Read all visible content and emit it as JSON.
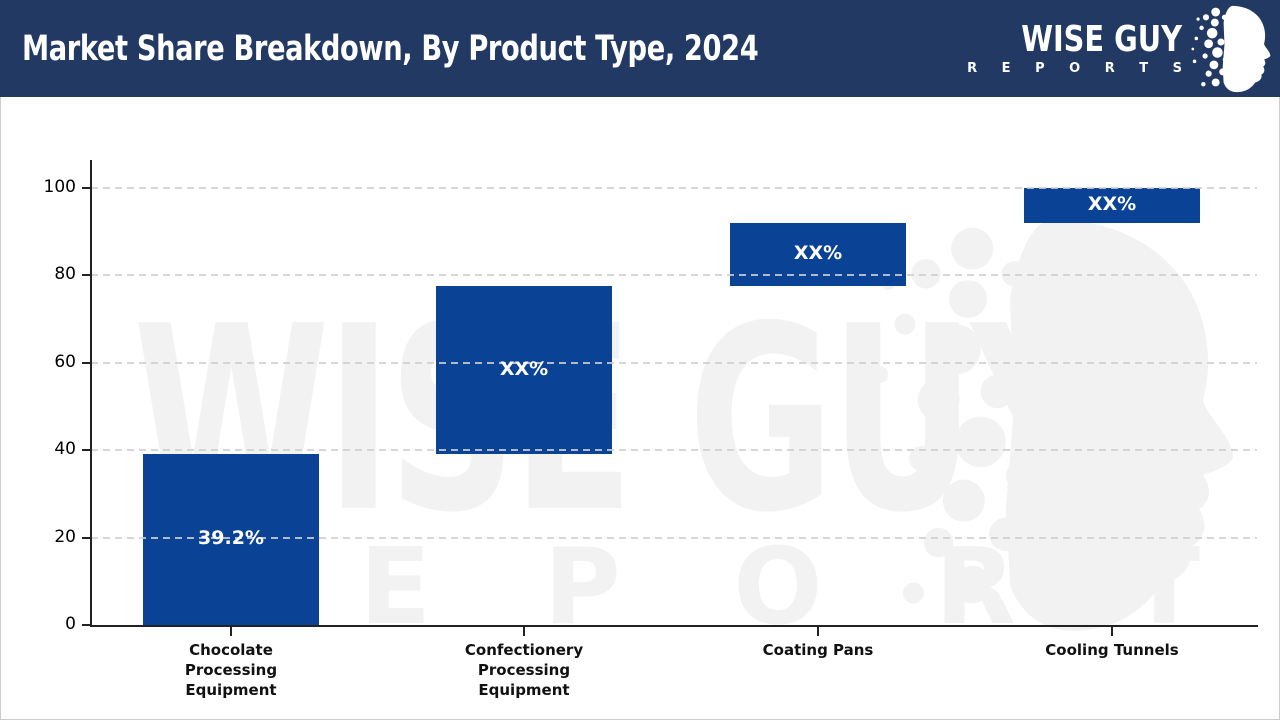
{
  "header": {
    "title": "Market Share Breakdown, By Product Type, 2024",
    "logo": {
      "line1": "WISE GUY",
      "line2": "R E P O R T S"
    }
  },
  "watermark": {
    "line1": "WISE GUY",
    "line2": "R E P O R T S"
  },
  "chart_data": {
    "type": "bar",
    "subtype": "waterfall",
    "title": "Market Share Breakdown, By Product Type, 2024",
    "categories": [
      "Chocolate Processing Equipment",
      "Confectionery Processing Equipment",
      "Coating Pans",
      "Cooling Tunnels"
    ],
    "category_label_lines": [
      [
        "Chocolate",
        "Processing",
        "Equipment"
      ],
      [
        "Confectionery",
        "Processing",
        "Equipment"
      ],
      [
        "Coating Pans"
      ],
      [
        "Cooling Tunnels"
      ]
    ],
    "segments": [
      {
        "category": "Chocolate Processing Equipment",
        "start": 0,
        "end": 39.2,
        "label": "39.2%"
      },
      {
        "category": "Confectionery Processing Equipment",
        "start": 39.2,
        "end": 77.5,
        "label": "XX%"
      },
      {
        "category": "Coating Pans",
        "start": 77.5,
        "end": 92.0,
        "label": "XX%"
      },
      {
        "category": "Cooling Tunnels",
        "start": 92.0,
        "end": 100.0,
        "label": "XX%"
      }
    ],
    "masked_value_label": "XX%",
    "xlabel": "",
    "ylabel": "",
    "ylim": [
      0,
      106
    ],
    "yticks": [
      0,
      20,
      40,
      60,
      80,
      100
    ],
    "grid": {
      "axis": "y",
      "style": "dashed",
      "drawn_above_bars": true
    },
    "legend": "none",
    "colors": {
      "bar": "#0a4296",
      "bar_label": "#ffffff",
      "header_background": "#223a63",
      "grid_line": "#cfcfcf",
      "axis_line": "#222222",
      "watermark": "#f2f2f2"
    }
  }
}
